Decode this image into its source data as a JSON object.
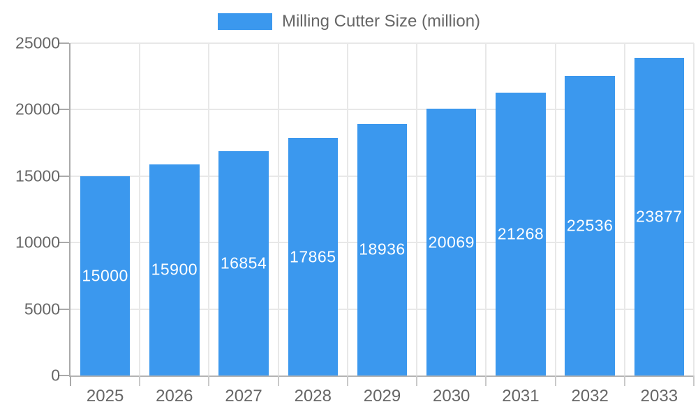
{
  "chart_data": {
    "type": "bar",
    "title": "",
    "legend": {
      "label": "Milling Cutter Size (million)",
      "position": "top"
    },
    "categories": [
      "2025",
      "2026",
      "2027",
      "2028",
      "2029",
      "2030",
      "2031",
      "2032",
      "2033"
    ],
    "series": [
      {
        "name": "Milling Cutter Size (million)",
        "values": [
          15000,
          15900,
          16854,
          17865,
          18936,
          20069,
          21268,
          22536,
          23877
        ]
      }
    ],
    "value_labels": [
      "15000",
      "15900",
      "16854",
      "17865",
      "18936",
      "20069",
      "21268",
      "22536",
      "23877"
    ],
    "xlabel": "",
    "ylabel": "",
    "ylim": [
      0,
      25000
    ],
    "ytick_values": [
      0,
      5000,
      10000,
      15000,
      20000,
      25000
    ],
    "ytick_labels": [
      "0",
      "5000",
      "10000",
      "15000",
      "20000",
      "25000"
    ],
    "grid": true,
    "colors": {
      "bar": "#3b98ee",
      "bar_value_text": "#ffffff",
      "axis_text": "#666666",
      "grid_line": "#e8e8e8",
      "axis_line": "#aaaaaa"
    }
  }
}
